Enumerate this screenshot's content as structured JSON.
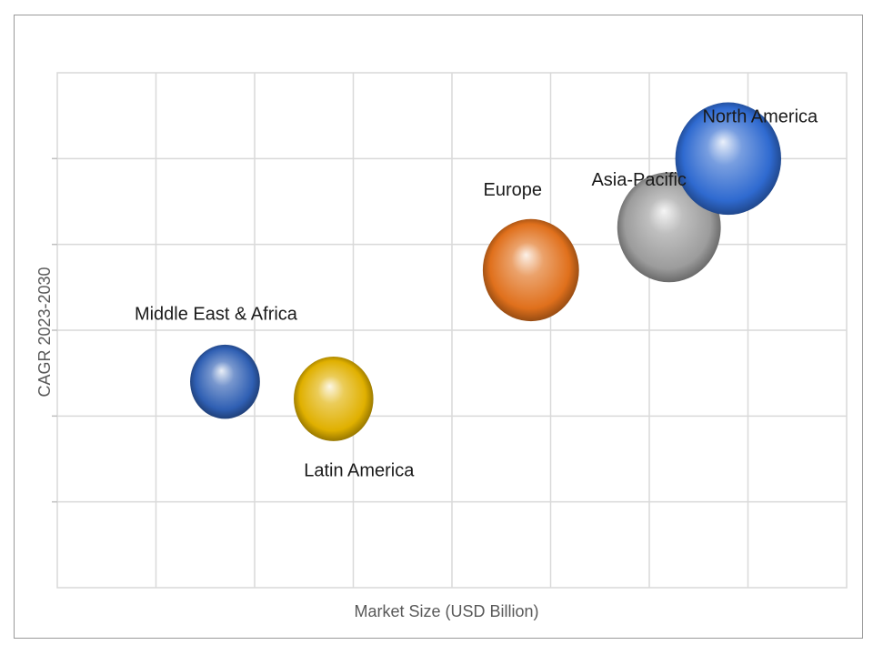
{
  "chart_data": {
    "type": "bubble",
    "xlabel": "Market Size (USD Billion)",
    "ylabel": "CAGR 2023-2030",
    "grid": true,
    "axis_ticks_labeled": false,
    "xlim": [
      0,
      8
    ],
    "ylim": [
      0,
      6
    ],
    "series": [
      {
        "name": "Middle East & Africa",
        "x": 1.7,
        "y": 2.4,
        "size": 0.5,
        "color": "#2f5fb3"
      },
      {
        "name": "Latin America",
        "x": 2.8,
        "y": 2.2,
        "size": 0.65,
        "color": "#e0b000"
      },
      {
        "name": "Europe",
        "x": 4.8,
        "y": 3.7,
        "size": 0.95,
        "color": "#e0701c"
      },
      {
        "name": "Asia-Pacific",
        "x": 6.2,
        "y": 4.2,
        "size": 1.1,
        "color": "#9c9c9c"
      },
      {
        "name": "North America",
        "x": 6.8,
        "y": 5.0,
        "size": 1.15,
        "color": "#2f6ad0"
      }
    ]
  }
}
